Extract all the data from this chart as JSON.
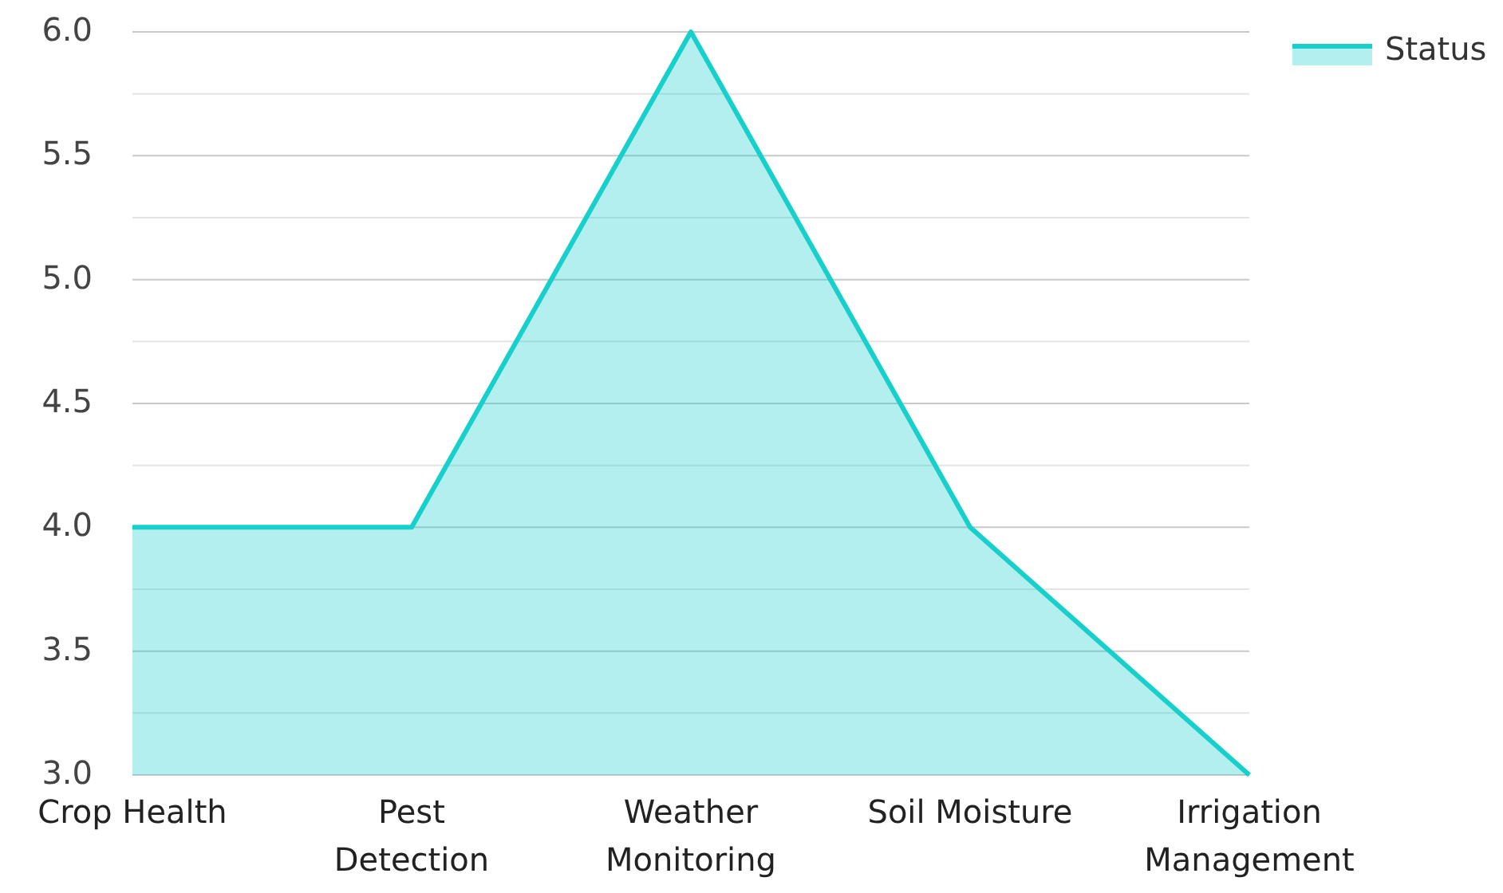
{
  "chart_data": {
    "type": "area",
    "categories": [
      "Crop Health",
      "Pest Detection",
      "Weather Monitoring",
      "Soil Moisture",
      "Irrigation Management"
    ],
    "series": [
      {
        "name": "Status",
        "color": "#17cfcb",
        "values": [
          4,
          4,
          6,
          4,
          3
        ]
      }
    ],
    "ylim": [
      3,
      6
    ],
    "yticks": [
      {
        "value": 3,
        "label": "3.0"
      },
      {
        "value": 3.25,
        "label": null
      },
      {
        "value": 3.5,
        "label": "3.5"
      },
      {
        "value": 3.75,
        "label": null
      },
      {
        "value": 4,
        "label": "4.0"
      },
      {
        "value": 4.25,
        "label": null
      },
      {
        "value": 4.5,
        "label": "4.5"
      },
      {
        "value": 4.75,
        "label": null
      },
      {
        "value": 5,
        "label": "5.0"
      },
      {
        "value": 5.25,
        "label": null
      },
      {
        "value": 5.5,
        "label": "5.5"
      },
      {
        "value": 5.75,
        "label": null
      },
      {
        "value": 6,
        "label": "6.0"
      }
    ],
    "grid": true,
    "legend": "top right"
  }
}
